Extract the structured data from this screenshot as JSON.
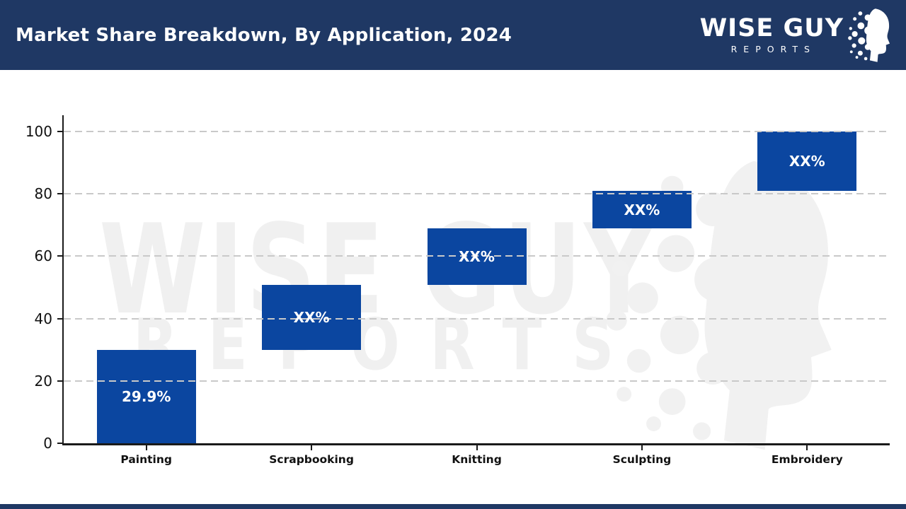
{
  "header": {
    "title": "Market Share Breakdown, By Application, 2024",
    "bg_color": "#1f3864"
  },
  "logo": {
    "line1": "WISE GUY",
    "line2": "REPORTS"
  },
  "watermark": {
    "line1": "WISE GUY",
    "line2": "REPORTS"
  },
  "chart_data": {
    "type": "bar",
    "subtype": "waterfall",
    "title": "Market Share Breakdown, By Application, 2024",
    "categories": [
      "Painting",
      "Scrapbooking",
      "Knitting",
      "Sculpting",
      "Embroidery"
    ],
    "segments": [
      {
        "category": "Painting",
        "start": 0,
        "end": 29.9,
        "label": "29.9%"
      },
      {
        "category": "Scrapbooking",
        "start": 29.9,
        "end": 50.9,
        "label": "XX%"
      },
      {
        "category": "Knitting",
        "start": 50.9,
        "end": 68.9,
        "label": "XX%"
      },
      {
        "category": "Sculpting",
        "start": 68.9,
        "end": 80.9,
        "label": "XX%"
      },
      {
        "category": "Embroidery",
        "start": 80.9,
        "end": 100,
        "label": "XX%"
      }
    ],
    "y_ticks": [
      0,
      20,
      40,
      60,
      80,
      100
    ],
    "ylim": [
      0,
      105
    ],
    "xlabel": "",
    "ylabel": "",
    "bar_color": "#0b46a0",
    "grid": "horizontal-dashed",
    "grid_color": "#c9c9c9",
    "axis_color": "#1a1a1a",
    "legend": "none"
  }
}
